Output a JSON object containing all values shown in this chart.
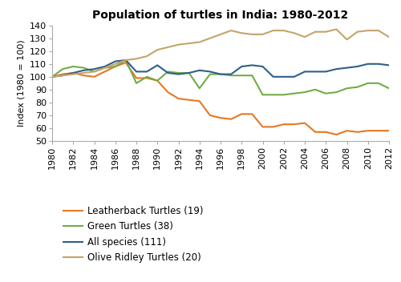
{
  "title": "Population of turtles in India: 1980-2012",
  "ylabel": "Index (1980 = 100)",
  "ylim": [
    50,
    140
  ],
  "yticks": [
    50,
    60,
    70,
    80,
    90,
    100,
    110,
    120,
    130,
    140
  ],
  "years": [
    1980,
    1981,
    1982,
    1983,
    1984,
    1985,
    1986,
    1987,
    1988,
    1989,
    1990,
    1991,
    1992,
    1993,
    1994,
    1995,
    1996,
    1997,
    1998,
    1999,
    2000,
    2001,
    2002,
    2003,
    2004,
    2005,
    2006,
    2007,
    2008,
    2009,
    2010,
    2011,
    2012
  ],
  "leatherback": [
    100,
    102,
    103,
    101,
    100,
    104,
    108,
    111,
    99,
    99,
    97,
    88,
    83,
    82,
    81,
    70,
    68,
    67,
    71,
    71,
    61,
    61,
    63,
    63,
    64,
    57,
    57,
    55,
    58,
    57,
    58,
    58,
    58
  ],
  "green": [
    100,
    106,
    108,
    107,
    104,
    107,
    108,
    113,
    95,
    100,
    97,
    104,
    103,
    103,
    91,
    102,
    102,
    101,
    101,
    101,
    86,
    86,
    86,
    87,
    88,
    90,
    87,
    88,
    91,
    92,
    95,
    95,
    91
  ],
  "all_species": [
    100,
    101,
    103,
    105,
    106,
    108,
    112,
    113,
    104,
    104,
    109,
    103,
    102,
    103,
    105,
    104,
    102,
    102,
    108,
    109,
    108,
    100,
    100,
    100,
    104,
    104,
    104,
    106,
    107,
    108,
    110,
    110,
    109
  ],
  "olive_ridley": [
    100,
    101,
    102,
    103,
    104,
    107,
    110,
    113,
    114,
    116,
    121,
    123,
    125,
    126,
    127,
    130,
    133,
    136,
    134,
    133,
    133,
    136,
    136,
    134,
    131,
    135,
    135,
    137,
    129,
    135,
    136,
    136,
    131
  ],
  "colors": {
    "leatherback": "#E87722",
    "green": "#70AD47",
    "all_species": "#2E5F8A",
    "olive_ridley": "#C4A46B"
  },
  "legend_labels": {
    "leatherback": "Leatherback Turtles (19)",
    "green": "Green Turtles (38)",
    "all_species": "All species (111)",
    "olive_ridley": "Olive Ridley Turtles (20)"
  },
  "xtick_years": [
    1980,
    1982,
    1984,
    1986,
    1988,
    1990,
    1992,
    1994,
    1996,
    1998,
    2000,
    2002,
    2004,
    2006,
    2008,
    2010,
    2012
  ],
  "background_color": "#FFFFFF",
  "title_fontsize": 10,
  "axis_fontsize": 8,
  "tick_fontsize": 8,
  "legend_fontsize": 8.5,
  "linewidth": 1.5
}
